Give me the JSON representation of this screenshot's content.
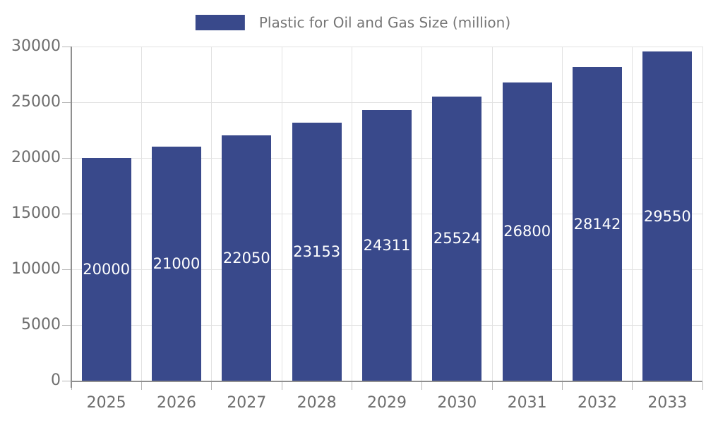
{
  "legend": {
    "label": "Plastic for Oil and Gas Size (million)"
  },
  "chart_data": {
    "type": "bar",
    "title": "",
    "series_name": "Plastic for Oil and Gas Size (million)",
    "categories": [
      "2025",
      "2026",
      "2027",
      "2028",
      "2029",
      "2030",
      "2031",
      "2032",
      "2033"
    ],
    "values": [
      20000,
      21000,
      22050,
      23153,
      24311,
      25524,
      26800,
      28142,
      29550
    ],
    "xlabel": "",
    "ylabel": "",
    "ylim": [
      0,
      30000
    ],
    "yticks": [
      0,
      5000,
      10000,
      15000,
      20000,
      25000,
      30000
    ],
    "grid": true,
    "legend_position": "top-center",
    "value_labels": "inside-center"
  },
  "colors": {
    "bar": "#39498B",
    "bar_label_text": "#FFFFFF",
    "grid": "#E2E2E2",
    "axis": "#8F8F8F",
    "tick": "#B5B5B5",
    "tick_text": "#6E6E6E",
    "legend_text": "#757575",
    "background": "#FFFFFF"
  }
}
